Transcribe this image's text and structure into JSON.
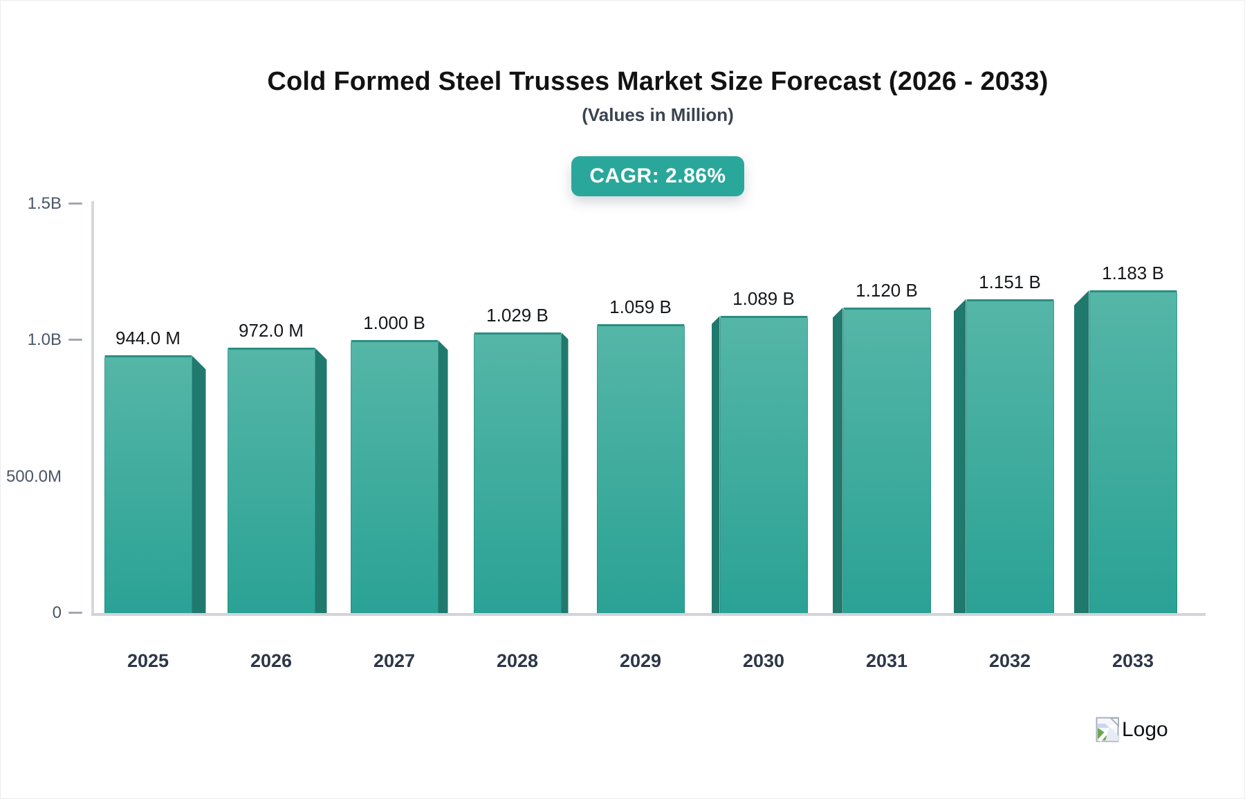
{
  "header": {
    "title": "Cold Formed Steel Trusses Market Size Forecast (2026 - 2033)",
    "subtitle": "(Values in Million)",
    "cagr_badge": "CAGR: 2.86%"
  },
  "chart_data": {
    "type": "bar",
    "title": "Cold Formed Steel Trusses Market Size Forecast (2026 - 2033)",
    "subtitle": "(Values in Million)",
    "cagr_percent": 2.86,
    "categories": [
      "2025",
      "2026",
      "2027",
      "2028",
      "2029",
      "2030",
      "2031",
      "2032",
      "2033"
    ],
    "values_billions": [
      0.944,
      0.972,
      1.0,
      1.029,
      1.059,
      1.089,
      1.12,
      1.151,
      1.183
    ],
    "value_labels": [
      "944.0 M",
      "972.0 M",
      "1.000 B",
      "1.029 B",
      "1.059 B",
      "1.089 B",
      "1.120 B",
      "1.151 B",
      "1.183 B"
    ],
    "xlabel": "",
    "ylabel": "",
    "ylim": [
      0,
      1.5
    ],
    "y_ticks": [
      {
        "label": "1.5B",
        "value": 1.5,
        "dash": true
      },
      {
        "label": "1.0B",
        "value": 1.0,
        "dash": true
      },
      {
        "label": "500.0M",
        "value": 0.5,
        "dash": false
      },
      {
        "label": "0",
        "value": 0.0,
        "dash": true
      }
    ],
    "grid": false,
    "legend": false
  },
  "footer": {
    "logo_alt": "Logo"
  },
  "colors": {
    "accent_teal": "#2aa79b",
    "bar_front_top": "#55b6a7",
    "bar_front_bottom": "#2aa295",
    "bar_top_edge": "#2b8e82",
    "bar_side_face": "#20796d",
    "axis_line": "#d6d7de",
    "tick": "#a4a7b0",
    "y_label": "#4a5568",
    "x_label": "#2d3748",
    "value_label": "#15181b",
    "badge_text": "#ffffff"
  }
}
